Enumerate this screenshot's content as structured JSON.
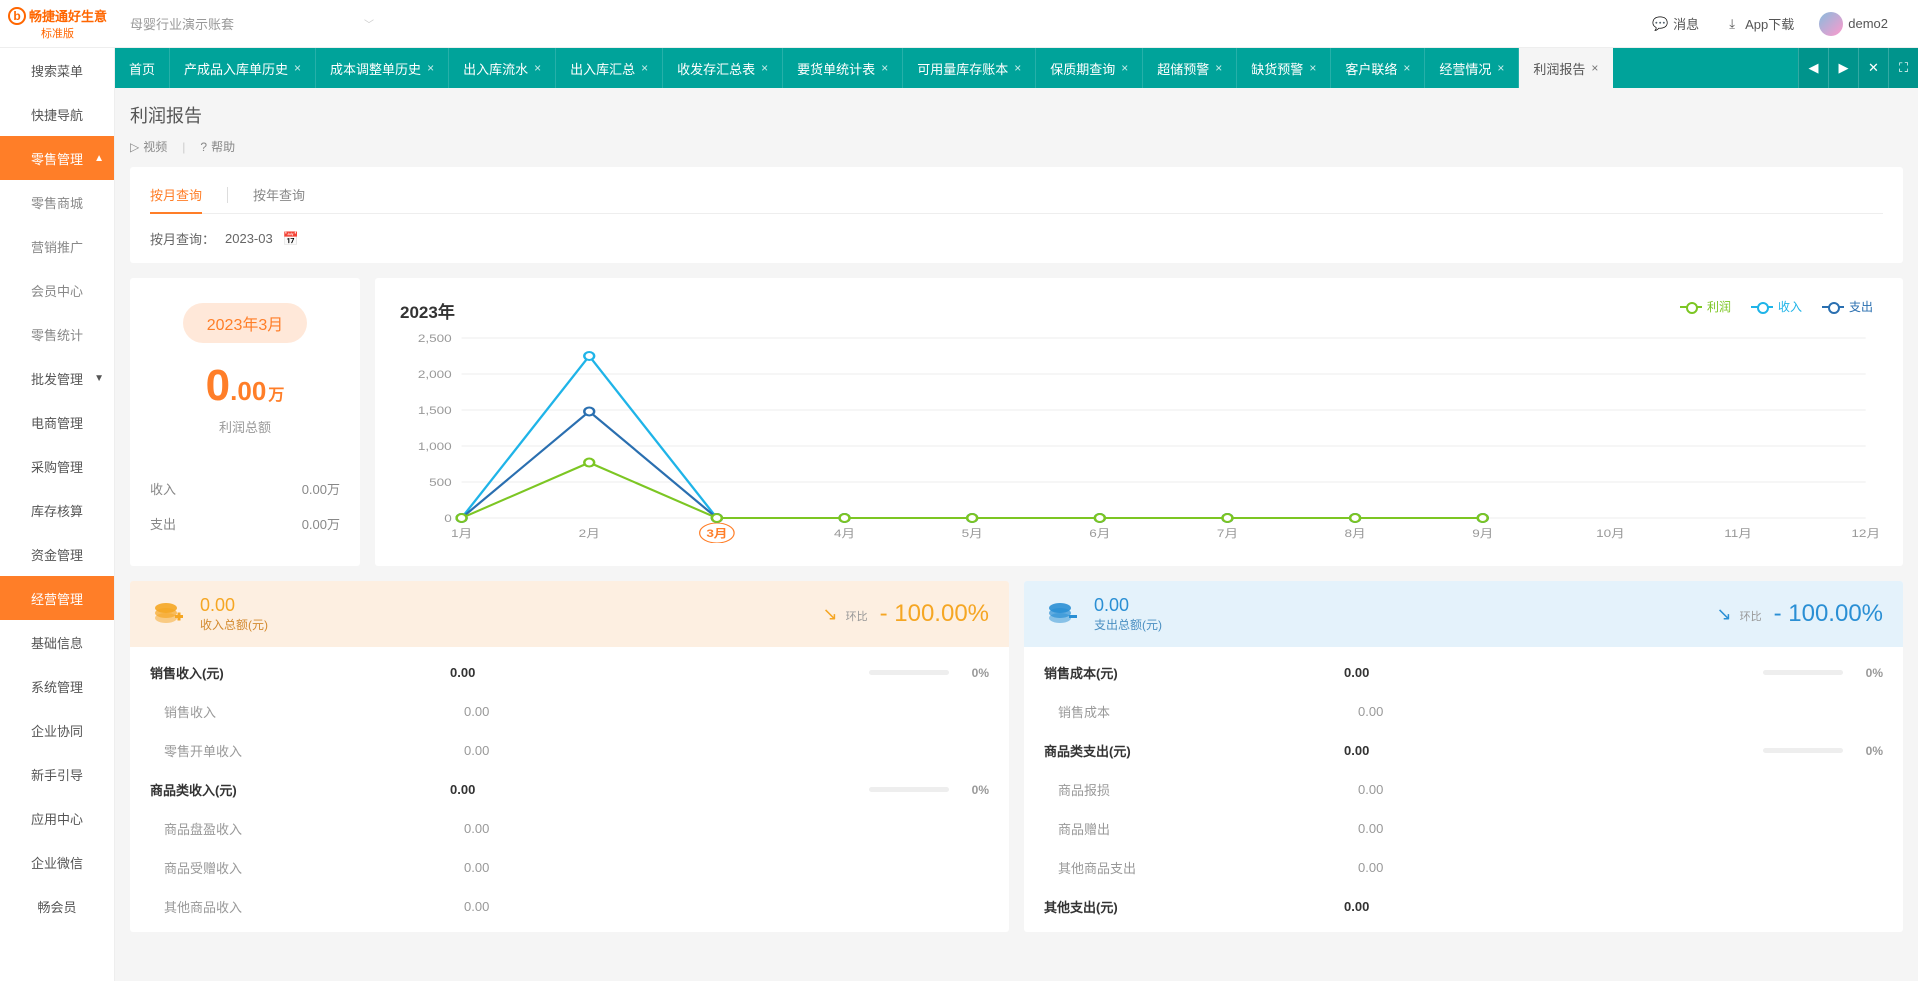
{
  "header": {
    "brand_main": "畅捷通好生意",
    "brand_sub": "标准版",
    "tenant": "母婴行业演示账套",
    "msg": "消息",
    "app_dl": "App下载",
    "user": "demo2"
  },
  "tabs": [
    {
      "label": "首页",
      "close": false
    },
    {
      "label": "产成品入库单历史",
      "close": true
    },
    {
      "label": "成本调整单历史",
      "close": true
    },
    {
      "label": "出入库流水",
      "close": true
    },
    {
      "label": "出入库汇总",
      "close": true
    },
    {
      "label": "收发存汇总表",
      "close": true
    },
    {
      "label": "要货单统计表",
      "close": true
    },
    {
      "label": "可用量库存账本",
      "close": true
    },
    {
      "label": "保质期查询",
      "close": true
    },
    {
      "label": "超储预警",
      "close": true
    },
    {
      "label": "缺货预警",
      "close": true
    },
    {
      "label": "客户联络",
      "close": true
    },
    {
      "label": "经营情况",
      "close": true
    },
    {
      "label": "利润报告",
      "close": true
    }
  ],
  "active_tab": 13,
  "sidebar": [
    {
      "label": "搜索菜单"
    },
    {
      "label": "快捷导航"
    },
    {
      "label": "零售管理",
      "hl": true,
      "caret": "▲"
    },
    {
      "label": "零售商城",
      "sub": true
    },
    {
      "label": "营销推广",
      "sub": true
    },
    {
      "label": "会员中心",
      "sub": true
    },
    {
      "label": "零售统计",
      "sub": true
    },
    {
      "label": "批发管理",
      "caret": "▼"
    },
    {
      "label": "电商管理"
    },
    {
      "label": "采购管理"
    },
    {
      "label": "库存核算"
    },
    {
      "label": "资金管理"
    },
    {
      "label": "经营管理",
      "hl2": true
    },
    {
      "label": "基础信息"
    },
    {
      "label": "系统管理"
    },
    {
      "label": "企业协同"
    },
    {
      "label": "新手引导"
    },
    {
      "label": "应用中心"
    },
    {
      "label": "企业微信"
    },
    {
      "label": "畅会员"
    }
  ],
  "page": {
    "title": "利润报告",
    "video": "视频",
    "help": "帮助",
    "subtab_month": "按月查询",
    "subtab_year": "按年查询",
    "filter_label": "按月查询：",
    "filter_value": "2023-03"
  },
  "summary": {
    "period": "2023年3月",
    "big_int": "0",
    "big_dec": ".00",
    "big_unit": "万",
    "big_label": "利润总额",
    "rows": [
      {
        "k": "收入",
        "v": "0.00万"
      },
      {
        "k": "支出",
        "v": "0.00万"
      }
    ]
  },
  "chart": {
    "title": "2023年",
    "legend": {
      "profit": "利润",
      "income": "收入",
      "expense": "支出"
    },
    "colors": {
      "profit": "#7cc623",
      "income": "#1fb4e8",
      "expense": "#2a6fb0",
      "grid": "#eeeeee",
      "axis": "#cccccc",
      "text": "#999999",
      "hl": "#ff7e28"
    },
    "y": {
      "max": 2500,
      "step": 500,
      "ticks": [
        "2,500",
        "2,000",
        "1,500",
        "1,000",
        "500",
        "0"
      ]
    },
    "x": [
      "1月",
      "2月",
      "3月",
      "4月",
      "5月",
      "6月",
      "7月",
      "8月",
      "9月",
      "10月",
      "11月",
      "12月"
    ],
    "x_hl_index": 2,
    "series": {
      "income": [
        0,
        2250,
        0,
        0,
        0,
        0,
        0,
        0,
        0,
        0,
        0,
        0
      ],
      "expense": [
        0,
        1480,
        0,
        0,
        0,
        0,
        0,
        0,
        0,
        0,
        0,
        0
      ],
      "profit": [
        0,
        770,
        0,
        0,
        0,
        0,
        0,
        0,
        0,
        0,
        0,
        0
      ]
    },
    "visible_points": 9
  },
  "panels": {
    "left": {
      "value": "0.00",
      "label": "收入总额(元)",
      "hb": "环比",
      "pct": "- 100.00%",
      "rows": [
        {
          "name": "销售收入(元)",
          "val": "0.00",
          "pct": "0%",
          "bold": true,
          "bar": true
        },
        {
          "name": "销售收入",
          "val": "0.00",
          "sub": true
        },
        {
          "name": "零售开单收入",
          "val": "0.00",
          "sub": true
        },
        {
          "name": "商品类收入(元)",
          "val": "0.00",
          "pct": "0%",
          "bold": true,
          "bar": true
        },
        {
          "name": "商品盘盈收入",
          "val": "0.00",
          "sub": true
        },
        {
          "name": "商品受赠收入",
          "val": "0.00",
          "sub": true
        },
        {
          "name": "其他商品收入",
          "val": "0.00",
          "sub": true
        }
      ]
    },
    "right": {
      "value": "0.00",
      "label": "支出总额(元)",
      "hb": "环比",
      "pct": "- 100.00%",
      "rows": [
        {
          "name": "销售成本(元)",
          "val": "0.00",
          "pct": "0%",
          "bold": true,
          "bar": true
        },
        {
          "name": "销售成本",
          "val": "0.00",
          "sub": true
        },
        {
          "name": "商品类支出(元)",
          "val": "0.00",
          "pct": "0%",
          "bold": true,
          "bar": true
        },
        {
          "name": "商品报损",
          "val": "0.00",
          "sub": true
        },
        {
          "name": "商品赠出",
          "val": "0.00",
          "sub": true
        },
        {
          "name": "其他商品支出",
          "val": "0.00",
          "sub": true
        },
        {
          "name": "其他支出(元)",
          "val": "0.00",
          "bold": true
        }
      ]
    }
  }
}
